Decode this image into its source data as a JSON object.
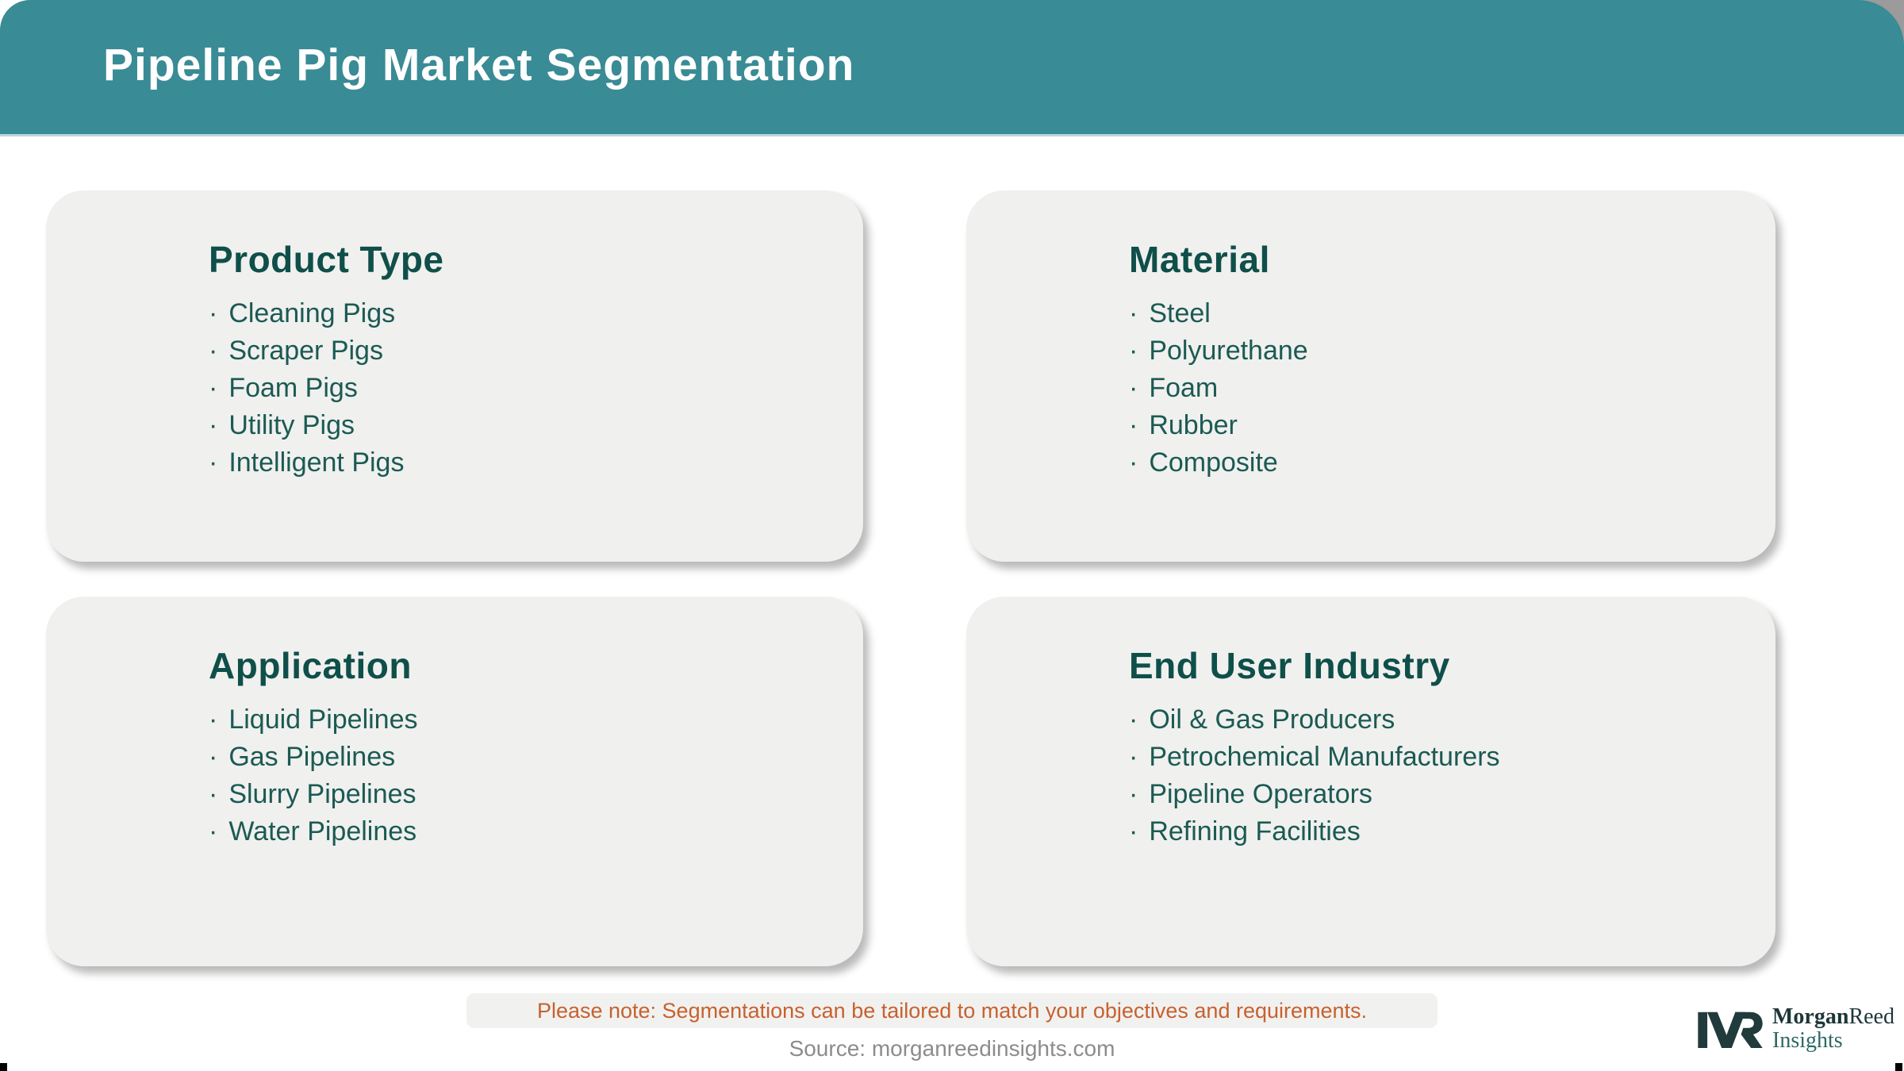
{
  "header": {
    "title": "Pipeline Pig Market Segmentation"
  },
  "bullet": "·",
  "cards": [
    {
      "title": "Product Type",
      "items": [
        "Cleaning Pigs",
        "Scraper Pigs",
        "Foam Pigs",
        "Utility Pigs",
        "Intelligent Pigs"
      ]
    },
    {
      "title": "Material",
      "items": [
        "Steel",
        "Polyurethane",
        "Foam",
        "Rubber",
        "Composite"
      ]
    },
    {
      "title": "Application",
      "items": [
        "Liquid Pipelines",
        "Gas Pipelines",
        "Slurry Pipelines",
        "Water Pipelines"
      ]
    },
    {
      "title": "End User Industry",
      "items": [
        "Oil & Gas Producers",
        "Petrochemical Manufacturers",
        "Pipeline Operators",
        "Refining Facilities"
      ]
    }
  ],
  "footer": {
    "note": "Please note: Segmentations can be tailored to match your objectives and requirements.",
    "source": "Source: morganreedinsights.com"
  },
  "logo": {
    "monogram": "MR",
    "name_bold": "Morgan",
    "name_regular": "Reed",
    "tagline": "Insights"
  },
  "colors": {
    "banner_teal": "#398b95",
    "card_background": "#f0f0ef",
    "heading_green": "#0f4f49",
    "item_green": "#1b5a53",
    "note_orange": "#c7612e",
    "source_gray": "#8c8c8c",
    "logo_dark": "#213a3c",
    "logo_teal": "#2d6a63"
  }
}
